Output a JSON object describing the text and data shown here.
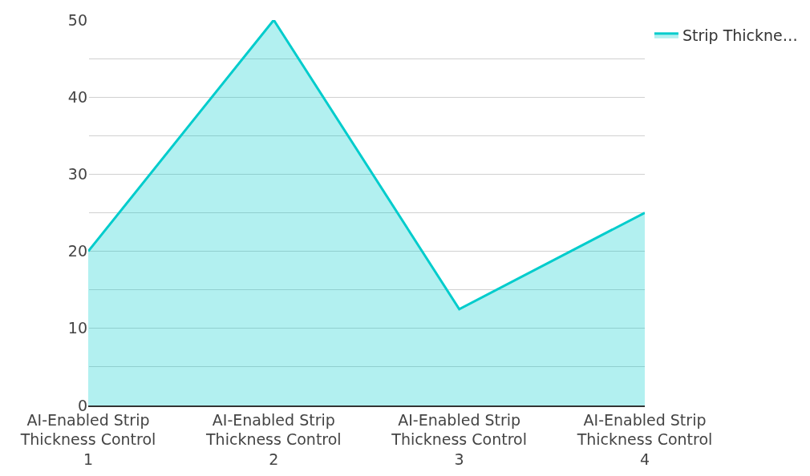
{
  "chart_data": {
    "type": "area",
    "categories": [
      "AI-Enabled Strip Thickness Control 1",
      "AI-Enabled Strip Thickness Control 2",
      "AI-Enabled Strip Thickness Control 3",
      "AI-Enabled Strip Thickness Control 4"
    ],
    "series": [
      {
        "name": "Strip Thickne…",
        "color": "#00cccc",
        "values": [
          20,
          50,
          12.5,
          25
        ]
      }
    ],
    "ylim": [
      0,
      50
    ],
    "yticks": [
      0,
      {
        "value": 5,
        "label": null
      },
      10,
      {
        "value": 15,
        "label": null
      },
      20,
      {
        "value": 25,
        "label": null
      },
      30,
      {
        "value": 35,
        "label": null
      },
      40,
      {
        "value": 45,
        "label": null
      },
      50
    ],
    "grid": "y",
    "legend": "top right"
  }
}
